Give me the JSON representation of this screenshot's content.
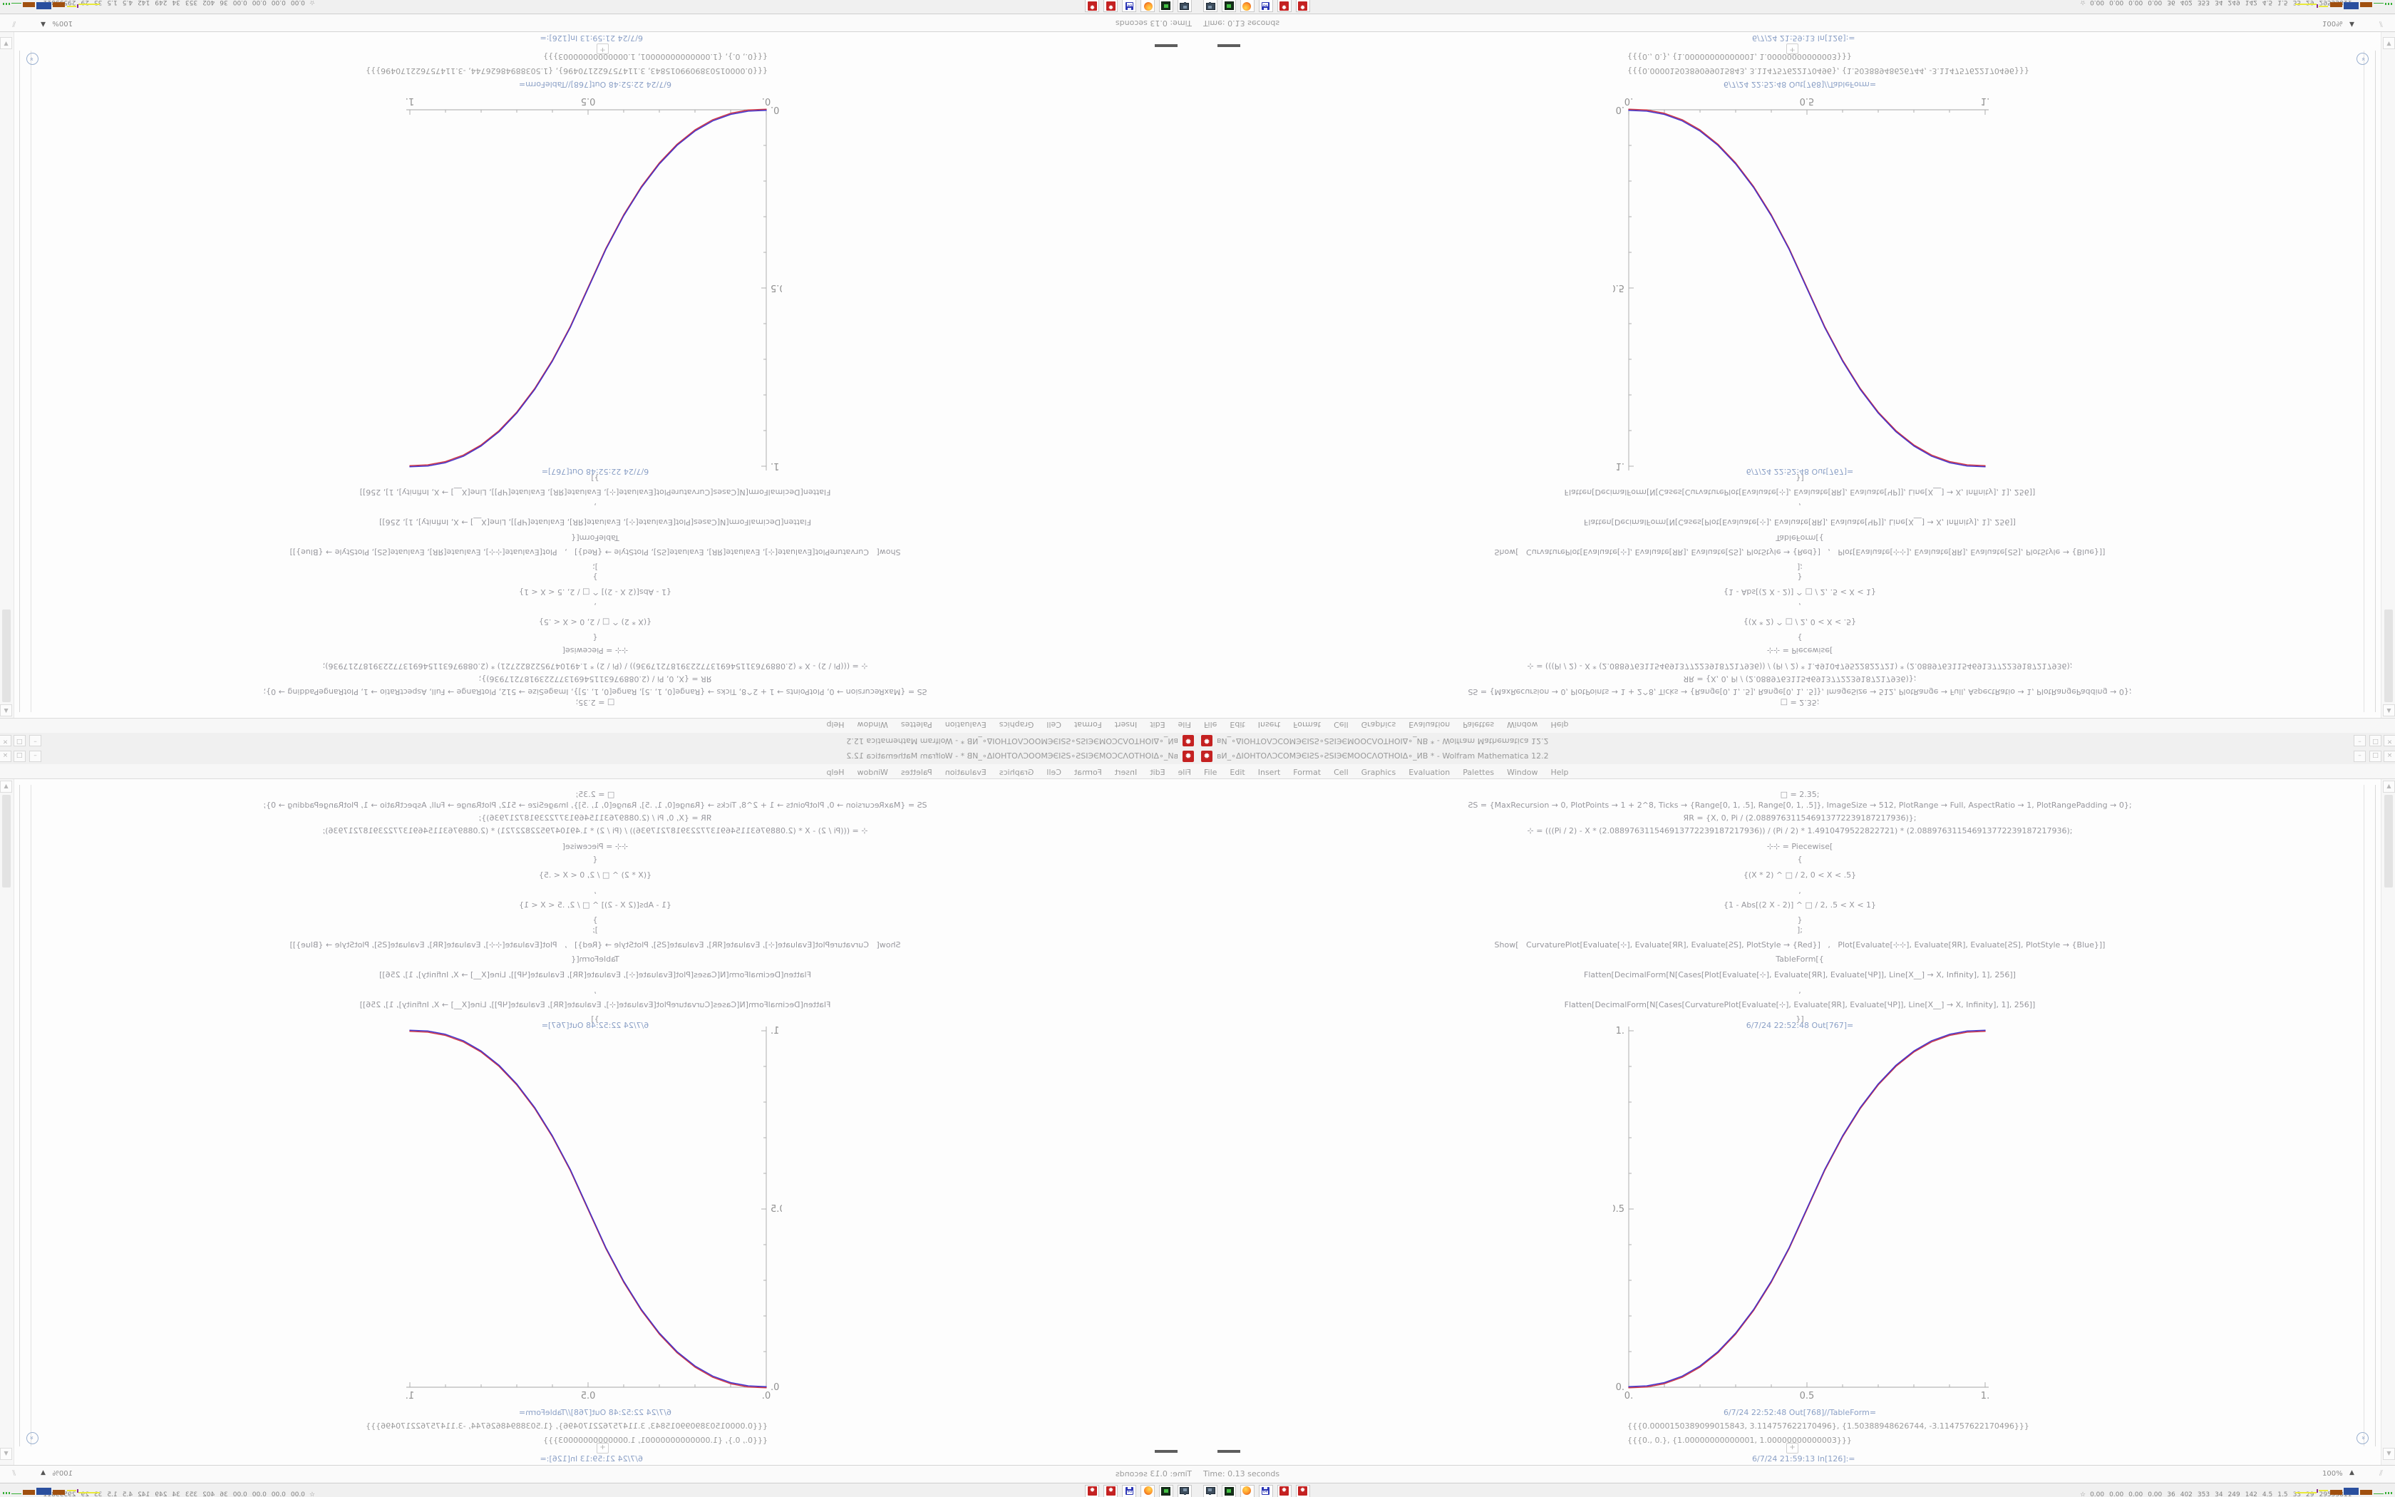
{
  "window": {
    "title": "ʙИ_∘ΔΙΟΗΤΟΛƆCOMЭЄΙƧЅ∘ƧЅΙЭЄΜΟΟCΛΟΤΗΟΙΔ∘_ИΒ * - Wolfram Mathematica 12.2",
    "app_icon_glyph": "✹",
    "controls": {
      "minimize": "–",
      "maximize": "□",
      "close": "×"
    },
    "menu": [
      "File",
      "Edit",
      "Insert",
      "Format",
      "Cell",
      "Graphics",
      "Evaluation",
      "Palettes",
      "Window",
      "Help"
    ]
  },
  "notebook": {
    "code_lines": [
      {
        "t": "□ = 2.35;",
        "y": 15
      },
      {
        "t": "ƧS = {MaxRecursion → 0, PlotPoints → 1 + 2^8, Ticks → {Range[0, 1, .5], Range[0, 1, .5]}, ImageSize → 512, PlotRange → Full, AspectRatio → 1, PlotRangePadding → 0};",
        "y": 30
      },
      {
        "t": "ЯR = {X, 0, Pi / (2.088976311546913772239187217936)};",
        "y": 48
      },
      {
        "t": "⊹ = (((Pi / 2) - X * (2.088976311546913772239187217936)) / (Pi / 2) * 1.4910479522822721) * (2.088976311546913772239187217936);",
        "y": 66
      },
      {
        "t": "⊹⊹ = Piecewise[",
        "y": 88
      },
      {
        "t": "{",
        "y": 106
      },
      {
        "t": "{(X * 2) ^ □ / 2, 0 < X < .5}",
        "y": 128
      },
      {
        "t": ",",
        "y": 150
      },
      {
        "t": "{1 - Abs[(2 X - 2)] ^ □ / 2, .5 < X < 1}",
        "y": 170
      },
      {
        "t": "}",
        "y": 191
      },
      {
        "t": "];",
        "y": 205
      },
      {
        "t": "Show[   CurvaturePlot[Evaluate[⊹], Evaluate[ЯR], Evaluate[ƧS], PlotStyle → {Red}]   ,   Plot[Evaluate[⊹⊹], Evaluate[ЯR], Evaluate[ƧS], PlotStyle → {Blue}]]",
        "y": 226
      },
      {
        "t": "TableForm[{",
        "y": 246
      },
      {
        "t": "Flatten[DecimalForm[N[Cases[Plot[Evaluate[⊹], Evaluate[ЯR], Evaluate[ЧP]], Line[X__] → X, Infinity], 1], 256]]",
        "y": 268
      },
      {
        "t": ",",
        "y": 290
      },
      {
        "t": "Flatten[DecimalForm[N[Cases[CurvaturePlot[Evaluate[⊹], Evaluate[ЯR], Evaluate[ЧP]], Line[X__] → X, Infinity], 1], 256]]",
        "y": 310
      },
      {
        "t": "}]",
        "y": 330
      }
    ],
    "out1_label": "6/7/24 22:52:48 Out[767]=",
    "out2_label": "6/7/24 22:52:48 Out[768]//TableForm=",
    "table_rows": [
      {
        "t": "{{{0.0000150389099015843, 3.114757622170496}, {1.50388948626744, -3.114757622170496}}}",
        "y": 901
      },
      {
        "t": "{{{0., 0.}, {1.00000000000001, 1.00000000000003}}}",
        "y": 921
      }
    ],
    "in_label": "6/7/24 21:59:13 In[126]:=",
    "insert_plus_glyph": "+",
    "chevron_glyph": "»",
    "scroll_up_glyph": "▲",
    "scroll_down_glyph": "▼"
  },
  "chart_data": {
    "type": "line",
    "title": "",
    "xlabel": "",
    "ylabel": "",
    "xlim": [
      0,
      1
    ],
    "ylim": [
      0,
      1
    ],
    "grid": false,
    "legend": "none",
    "axes_style": "left-and-bottom axes, light gray, inward ticks",
    "x": [
      0,
      0.05,
      0.1,
      0.15,
      0.2,
      0.25,
      0.3,
      0.35,
      0.4,
      0.45,
      0.5,
      0.55,
      0.6,
      0.65,
      0.7,
      0.75,
      0.8,
      0.85,
      0.9,
      0.95,
      1
    ],
    "series": [
      {
        "name": "CurvaturePlot result (Red)",
        "color": "#cc3344",
        "values": [
          0,
          0.0022,
          0.0114,
          0.0295,
          0.0581,
          0.098,
          0.1505,
          0.2162,
          0.2961,
          0.3903,
          0.5,
          0.6097,
          0.7039,
          0.7838,
          0.8495,
          0.902,
          0.9419,
          0.9705,
          0.9886,
          0.9978,
          1
        ]
      },
      {
        "name": "Plot result (Blue)",
        "color": "#4433cc",
        "values": [
          0,
          0.0022,
          0.0114,
          0.0295,
          0.0581,
          0.098,
          0.1505,
          0.2162,
          0.2961,
          0.3903,
          0.5,
          0.6097,
          0.7039,
          0.7838,
          0.8495,
          0.902,
          0.9419,
          0.9705,
          0.9886,
          0.9978,
          1
        ]
      }
    ],
    "xticks": {
      "values": [
        0,
        0.5,
        1
      ],
      "labels": [
        "0.",
        "0.5",
        "1."
      ]
    },
    "yticks": {
      "values": [
        0,
        0.5,
        1
      ],
      "labels": [
        "0.",
        "0.5",
        "1."
      ]
    }
  },
  "status_bar": {
    "time_text": "Time: 0.13 seconds",
    "zoom_level": "100%",
    "zoom_arrow_glyph": "▲",
    "grip_glyph": "⫽"
  },
  "taskbar": {
    "floppy_label": "64",
    "spikey_glyph": "✹",
    "sysmon_glyph": "☆",
    "monitor_values": [
      "0.00",
      "0.00",
      "0.00",
      "0.00",
      "36",
      "402",
      "353",
      "34",
      "249",
      "142",
      "4.5",
      "1.5",
      "33",
      "29",
      "29553811"
    ]
  }
}
